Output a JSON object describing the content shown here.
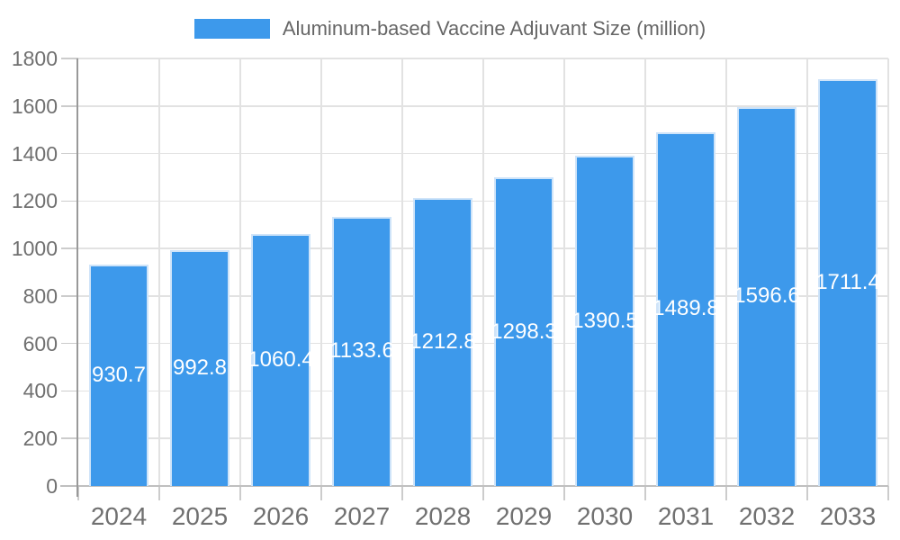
{
  "chart_data": {
    "type": "bar",
    "title": "Aluminum-based Vaccine Adjuvant Size (million)",
    "legend_position": "top",
    "categories": [
      "2024",
      "2025",
      "2026",
      "2027",
      "2028",
      "2029",
      "2030",
      "2031",
      "2032",
      "2033"
    ],
    "series": [
      {
        "name": "Aluminum-based Vaccine Adjuvant Size (million)",
        "values": [
          930.7,
          992.8,
          1060.4,
          1133.6,
          1212.8,
          1298.3,
          1390.5,
          1489.8,
          1596.6,
          1711.4
        ]
      }
    ],
    "value_labels_shown": true,
    "xlabel": "",
    "ylabel": "",
    "ylim": [
      0,
      1800
    ],
    "yticks": [
      0,
      200,
      400,
      600,
      800,
      1000,
      1200,
      1400,
      1600,
      1800
    ],
    "grid": true,
    "colors": {
      "bar": "#3d99eb",
      "bar_border": "#cfe4f9",
      "grid": "#e2e2e2",
      "y_axis_line": "#999999",
      "x_axis_line": "#c0c0c0",
      "tick": "#cccccc",
      "tick_label": "#707070",
      "legend_text": "#666666",
      "value_label": "#ffffff",
      "background": "#ffffff"
    }
  }
}
